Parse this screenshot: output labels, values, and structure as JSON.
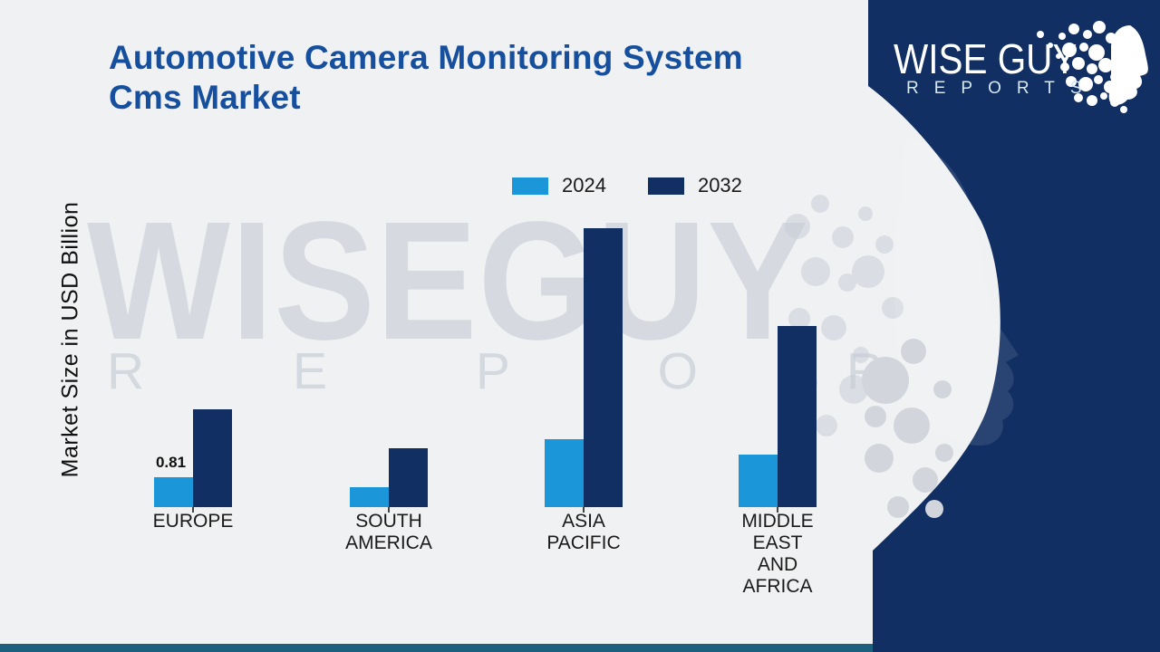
{
  "page": {
    "background": "#f0f1f2",
    "accent_teal": "#1d5f7e",
    "panel_navy": "#112f63",
    "title_color": "#164f9e",
    "watermark_color": "#b2bac7"
  },
  "header": {
    "title_line1": "Automotive Camera Monitoring System",
    "title_line2": "Cms Market"
  },
  "watermark": {
    "line1": "WISEGUY",
    "line2": "R E P O R T S"
  },
  "logo": {
    "brand_line1": "WISE GUY",
    "brand_line2": "REPORTS"
  },
  "chart_data": {
    "type": "bar",
    "title": "Automotive Camera Monitoring System Cms Market",
    "xlabel": "",
    "ylabel": "Market Size in USD Billion",
    "ylim": [
      0,
      8
    ],
    "grid": false,
    "axis_lines": "none",
    "legend_position": "top-center-above-plot",
    "categories": [
      "EUROPE",
      "SOUTH AMERICA",
      "ASIA PACIFIC",
      "MIDDLE EAST AND AFRICA"
    ],
    "category_label_lines": [
      [
        "EUROPE"
      ],
      [
        "SOUTH",
        "AMERICA"
      ],
      [
        "ASIA",
        "PACIFIC"
      ],
      [
        "MIDDLE",
        "EAST",
        "AND",
        "AFRICA"
      ]
    ],
    "series": [
      {
        "name": "2024",
        "color": "#1b96d8",
        "values": [
          0.81,
          0.54,
          1.84,
          1.42
        ]
      },
      {
        "name": "2032",
        "color": "#112f63",
        "values": [
          2.65,
          1.6,
          7.56,
          4.91
        ]
      }
    ],
    "visible_data_labels": [
      {
        "category": "EUROPE",
        "series": "2024",
        "label": "0.81"
      }
    ],
    "note": "Only the EUROPE 2024 bar carries a printed value (0.81); other values estimated from bar heights."
  }
}
